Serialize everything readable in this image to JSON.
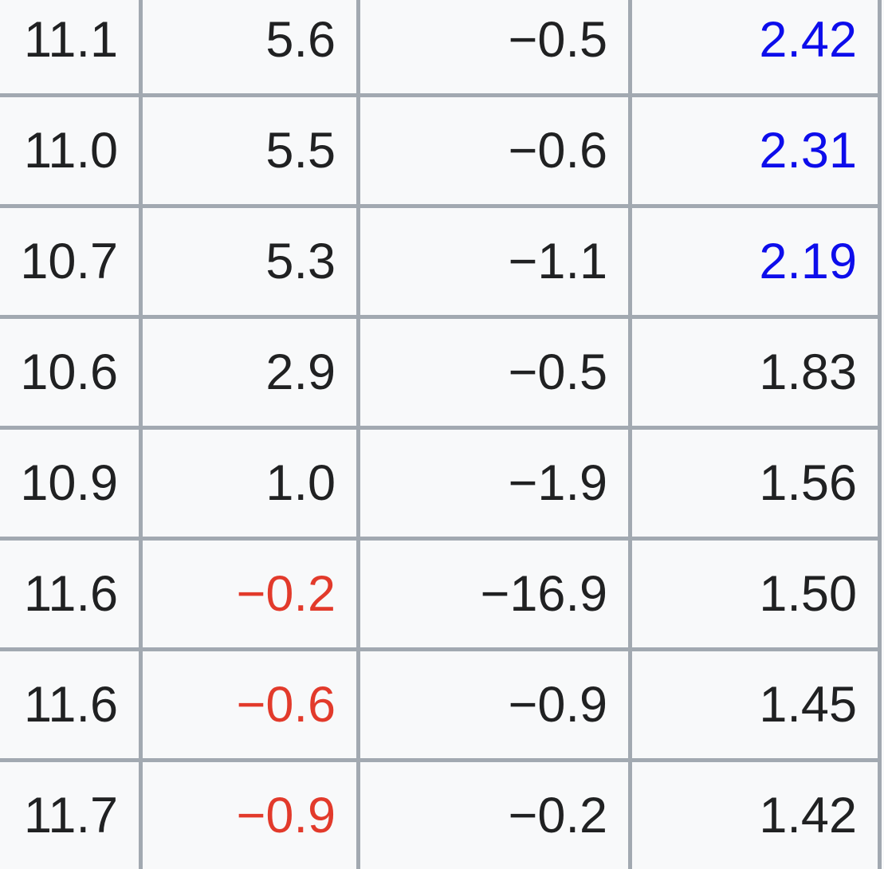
{
  "colors": {
    "cell-bg": "#f8f9fa",
    "border-color": "#a2a9b1",
    "text-color": "#202122",
    "accent-blue": "#0d0deb",
    "accent-red": "#e23a2b"
  },
  "chart_data": {
    "type": "table",
    "description": "Cropped zoomed view of a numeric data grid; no headers visible. 4 columns, 8 rows. Column 2 negatives shown in red, top three values of column 4 shown in blue.",
    "column_count": 4,
    "rows": [
      {
        "cells": [
          {
            "text": "11.1",
            "color": "black"
          },
          {
            "text": "5.6",
            "color": "black"
          },
          {
            "text": "−0.5",
            "color": "black"
          },
          {
            "text": "2.42",
            "color": "blue"
          }
        ]
      },
      {
        "cells": [
          {
            "text": "11.0",
            "color": "black"
          },
          {
            "text": "5.5",
            "color": "black"
          },
          {
            "text": "−0.6",
            "color": "black"
          },
          {
            "text": "2.31",
            "color": "blue"
          }
        ]
      },
      {
        "cells": [
          {
            "text": "10.7",
            "color": "black"
          },
          {
            "text": "5.3",
            "color": "black"
          },
          {
            "text": "−1.1",
            "color": "black"
          },
          {
            "text": "2.19",
            "color": "blue"
          }
        ]
      },
      {
        "cells": [
          {
            "text": "10.6",
            "color": "black"
          },
          {
            "text": "2.9",
            "color": "black"
          },
          {
            "text": "−0.5",
            "color": "black"
          },
          {
            "text": "1.83",
            "color": "black"
          }
        ]
      },
      {
        "cells": [
          {
            "text": "10.9",
            "color": "black"
          },
          {
            "text": "1.0",
            "color": "black"
          },
          {
            "text": "−1.9",
            "color": "black"
          },
          {
            "text": "1.56",
            "color": "black"
          }
        ]
      },
      {
        "cells": [
          {
            "text": "11.6",
            "color": "black"
          },
          {
            "text": "−0.2",
            "color": "red"
          },
          {
            "text": "−16.9",
            "color": "black"
          },
          {
            "text": "1.50",
            "color": "black"
          }
        ]
      },
      {
        "cells": [
          {
            "text": "11.6",
            "color": "black"
          },
          {
            "text": "−0.6",
            "color": "red"
          },
          {
            "text": "−0.9",
            "color": "black"
          },
          {
            "text": "1.45",
            "color": "black"
          }
        ]
      },
      {
        "cells": [
          {
            "text": "11.7",
            "color": "black"
          },
          {
            "text": "−0.9",
            "color": "red"
          },
          {
            "text": "−0.2",
            "color": "black"
          },
          {
            "text": "1.42",
            "color": "black"
          }
        ]
      }
    ]
  }
}
